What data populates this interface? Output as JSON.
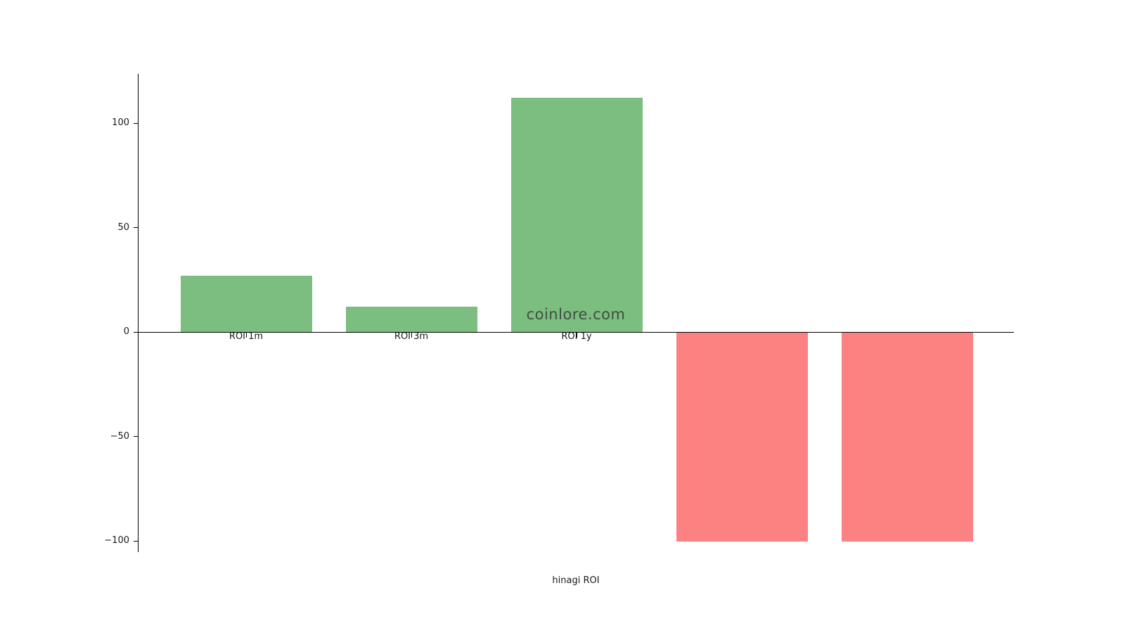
{
  "watermark": {
    "text": "coinlore.com",
    "color": "#3E5040"
  },
  "chart_data": {
    "type": "bar",
    "title": "",
    "xlabel": "hinagi ROI",
    "ylabel": "",
    "categories": [
      "ROI 1m",
      "ROI 3m",
      "ROI 1y",
      "",
      ""
    ],
    "values": [
      27,
      12,
      112,
      -100,
      -100
    ],
    "yticks": [
      100,
      50,
      0,
      -50,
      -100
    ],
    "ylim": [
      -105,
      124
    ],
    "grid": false,
    "legend": "none",
    "positive_color": "#7CBD80",
    "negative_color": "#FC8181",
    "axis_color": "#000000",
    "tick_label_color": "#1a1a1a"
  }
}
